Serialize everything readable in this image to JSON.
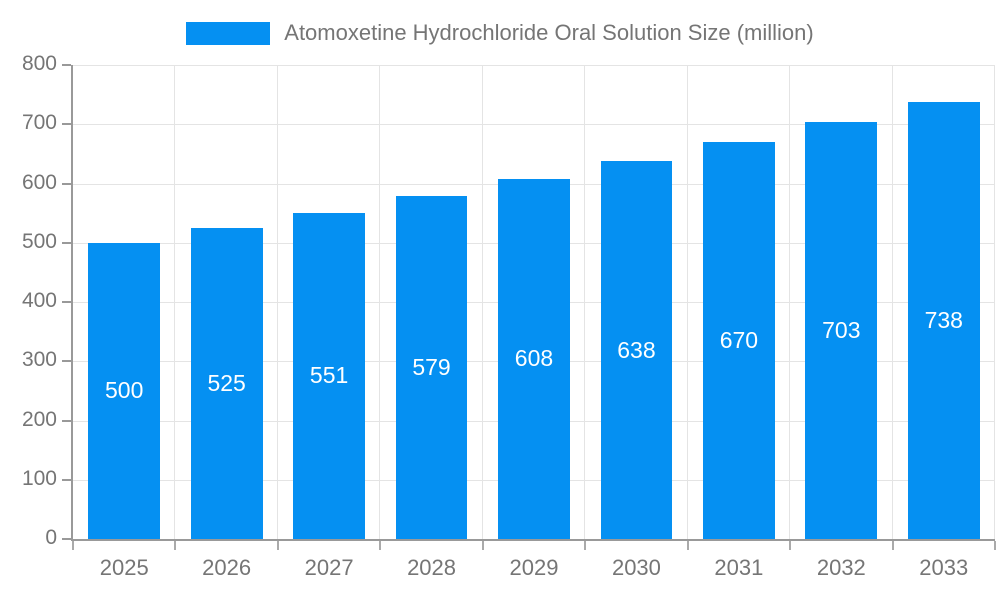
{
  "legend": {
    "label": "Atomoxetine Hydrochloride Oral Solution Size (million)"
  },
  "chart_data": {
    "type": "bar",
    "title": "Atomoxetine Hydrochloride Oral Solution Size (million)",
    "categories": [
      "2025",
      "2026",
      "2027",
      "2028",
      "2029",
      "2030",
      "2031",
      "2032",
      "2033"
    ],
    "values": [
      500,
      525,
      551,
      579,
      608,
      638,
      670,
      703,
      738
    ],
    "series_name": "Atomoxetine Hydrochloride Oral Solution Size (million)",
    "xlabel": "",
    "ylabel": "",
    "ylim": [
      0,
      800
    ],
    "ytick_step": 100,
    "grid": true,
    "legend_position": "top",
    "bar_labels_shown": true,
    "bar_label_position": "center"
  },
  "colors": {
    "bar": "#0590f2",
    "axis_line": "#999999",
    "grid_line": "#e4e4e4",
    "text": "#757575",
    "bar_label": "#ffffff",
    "background": "#ffffff"
  }
}
